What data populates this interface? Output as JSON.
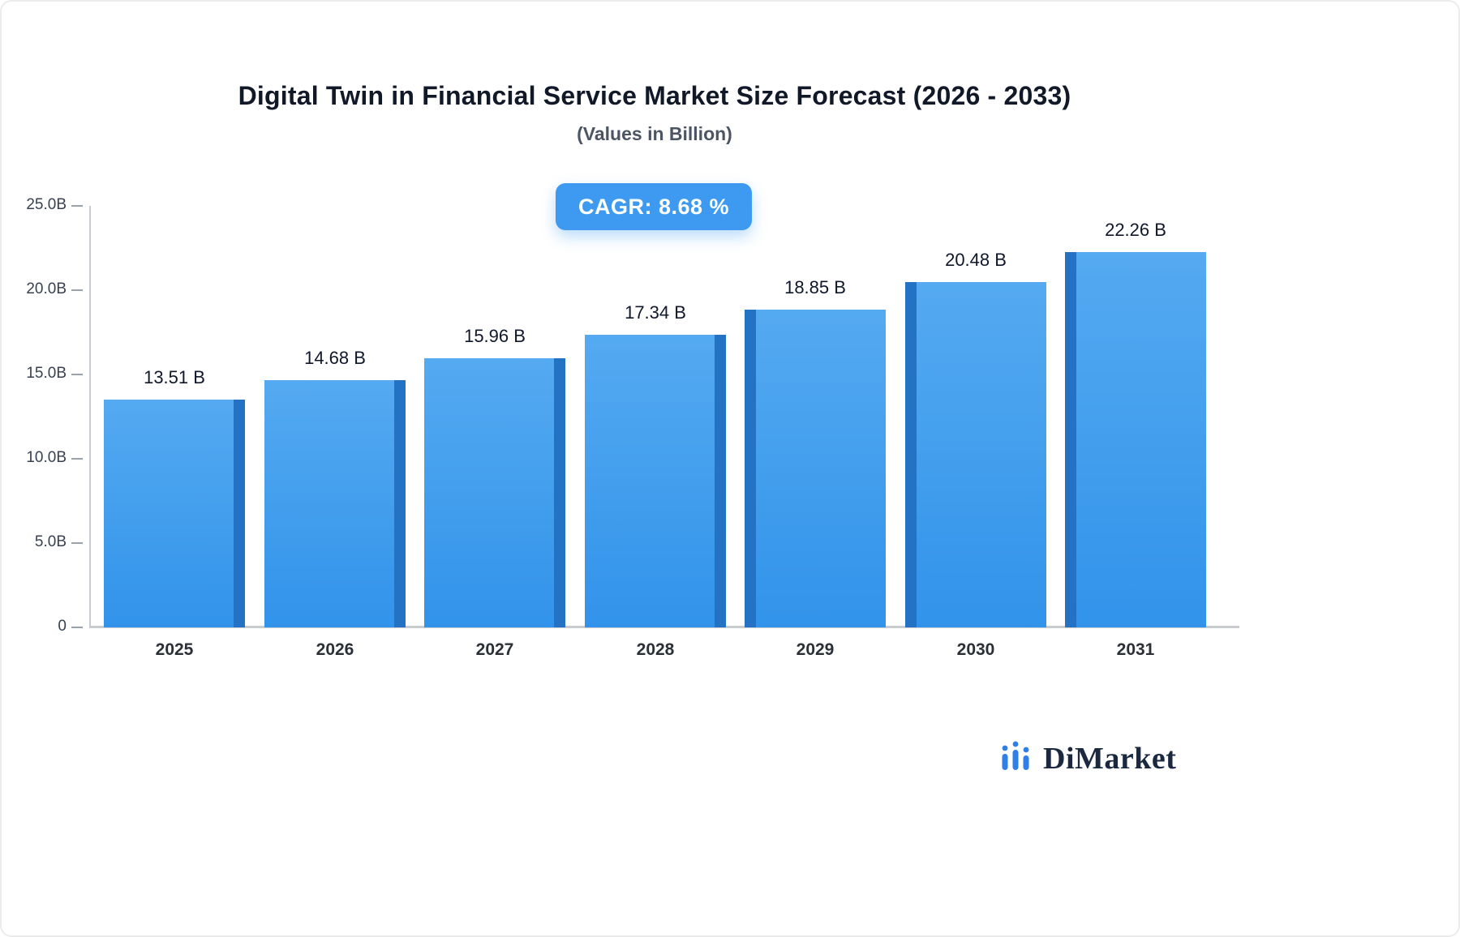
{
  "header": {
    "title": "Digital Twin in Financial Service Market Size Forecast (2026 - 2033)",
    "subtitle": "(Values in Billion)"
  },
  "badge": {
    "text": "CAGR: 8.68 %"
  },
  "chart_data": {
    "type": "bar",
    "title": "Digital Twin in Financial Service Market Size Forecast (2026 - 2033)",
    "subtitle": "(Values in Billion)",
    "categories": [
      "2025",
      "2026",
      "2027",
      "2028",
      "2029",
      "2030",
      "2031"
    ],
    "values": [
      13.51,
      14.68,
      15.96,
      17.34,
      18.85,
      20.48,
      22.26
    ],
    "value_labels": [
      "13.51 B",
      "14.68 B",
      "15.96 B",
      "17.34 B",
      "18.85 B",
      "20.48 B",
      "22.26 B"
    ],
    "xlabel": "",
    "ylabel": "",
    "ylim": [
      0,
      25
    ],
    "yticks": [
      {
        "value": 0,
        "label": "0"
      },
      {
        "value": 5,
        "label": "5.0B"
      },
      {
        "value": 10,
        "label": "10.0B"
      },
      {
        "value": 15,
        "label": "15.0B"
      },
      {
        "value": 20,
        "label": "20.0B"
      },
      {
        "value": 25,
        "label": "25.0B"
      }
    ],
    "grid": false,
    "legend": false,
    "bar_color": "#3b9bed",
    "bar_edge_color": "#2472c4"
  },
  "footer": {
    "brand": "DiMarket"
  },
  "icons": {
    "brand_icon": "bar-chart-dots-icon"
  }
}
